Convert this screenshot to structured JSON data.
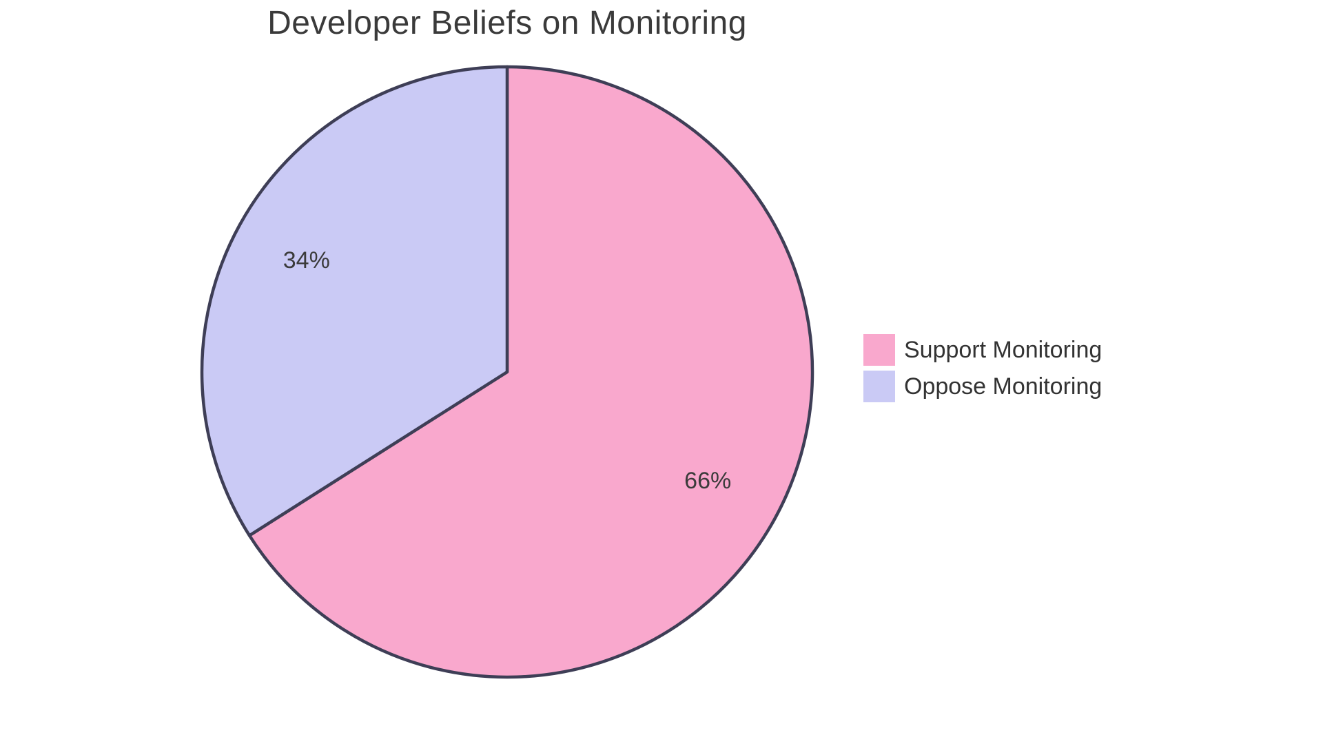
{
  "title": "Developer Beliefs on Monitoring",
  "chart_data": {
    "type": "pie",
    "title": "Developer Beliefs on Monitoring",
    "start_angle": "top",
    "direction": "clockwise",
    "legend_position": "right",
    "grid": false,
    "slices": [
      {
        "label": "Support Monitoring",
        "value": 66,
        "percent_label": "66%",
        "color": "#F9A8CD"
      },
      {
        "label": "Oppose Monitoring",
        "value": 34,
        "percent_label": "34%",
        "color": "#CACAF5"
      }
    ],
    "colors": {
      "outline": "#3E3E56",
      "slice_label_text": "#3B3B3B",
      "title_text": "#3A3A3A",
      "legend_text": "#333333",
      "background": "#FFFFFF"
    }
  }
}
